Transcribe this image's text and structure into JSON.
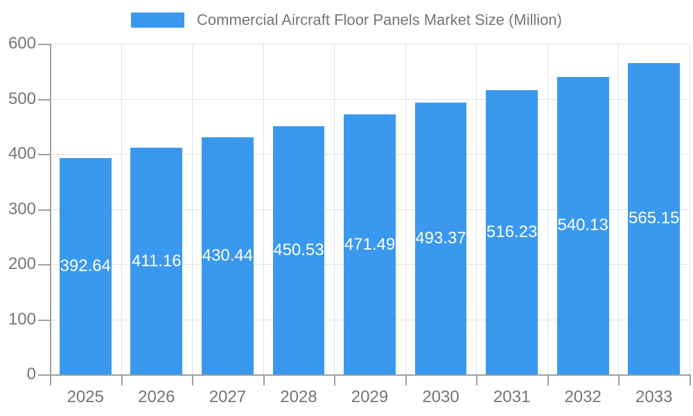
{
  "chart_data": {
    "type": "bar",
    "title": "Commercial Aircraft Floor Panels Market Size (Million)",
    "legend": {
      "position": "top-center",
      "entries": [
        "Commercial Aircraft Floor Panels Market Size (Million)"
      ]
    },
    "categories": [
      "2025",
      "2026",
      "2027",
      "2028",
      "2029",
      "2030",
      "2031",
      "2032",
      "2033"
    ],
    "series": [
      {
        "name": "Commercial Aircraft Floor Panels Market Size (Million)",
        "values": [
          392.64,
          411.16,
          430.44,
          450.53,
          471.49,
          493.37,
          516.23,
          540.13,
          565.15
        ]
      }
    ],
    "value_labels": [
      "392.64",
      "411.16",
      "430.44",
      "450.53",
      "471.49",
      "493.37",
      "516.23",
      "540.13",
      "565.15"
    ],
    "xlabel": "",
    "ylabel": "",
    "ylim": [
      0,
      600
    ],
    "y_ticks": [
      0,
      100,
      200,
      300,
      400,
      500,
      600
    ],
    "grid": true,
    "colors": {
      "bar": "#3a99ee",
      "value_label": "#ffffff",
      "axis_text": "#757575",
      "axis_line": "#9e9e9e",
      "grid_line": "#e2e2e2",
      "background": "#ffffff"
    }
  }
}
